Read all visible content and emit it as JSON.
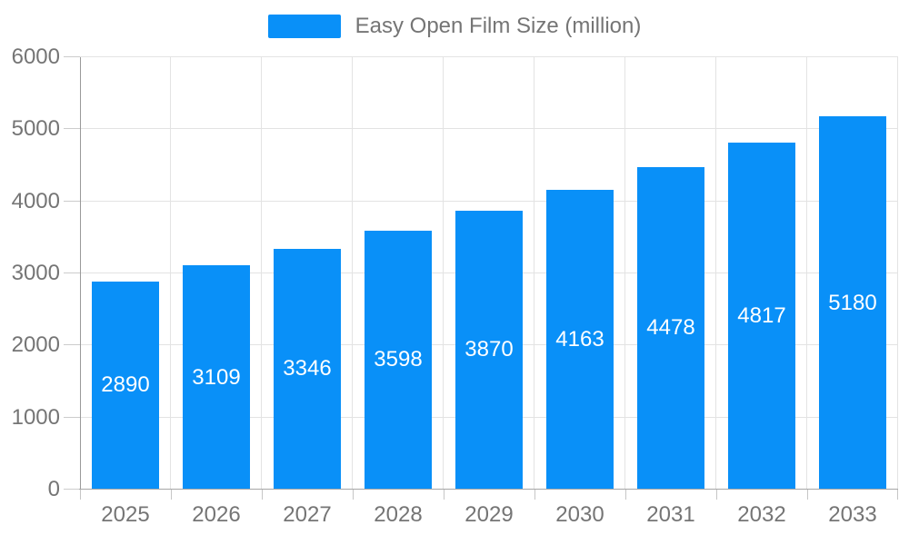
{
  "legend": {
    "label": "Easy Open Film Size (million)",
    "swatch_color": "#0990f8"
  },
  "chart_data": {
    "type": "bar",
    "title": "Easy Open Film Size (million)",
    "series_name": "Easy Open Film Size (million)",
    "categories": [
      "2025",
      "2026",
      "2027",
      "2028",
      "2029",
      "2030",
      "2031",
      "2032",
      "2033"
    ],
    "values": [
      2890,
      3109,
      3346,
      3598,
      3870,
      4163,
      4478,
      4817,
      5180
    ],
    "xlabel": "",
    "ylabel": "",
    "ylim": [
      0,
      6000
    ],
    "y_ticks": [
      0,
      1000,
      2000,
      3000,
      4000,
      5000,
      6000
    ],
    "grid": true,
    "legend_position": "top-center",
    "bar_color": "#0990f8",
    "value_label_color": "#ffffff",
    "axis_text_color": "#757575",
    "gridline_color": "#e3e3e3",
    "axis_line_color": "#999999",
    "bar_width_fraction": 0.74
  }
}
